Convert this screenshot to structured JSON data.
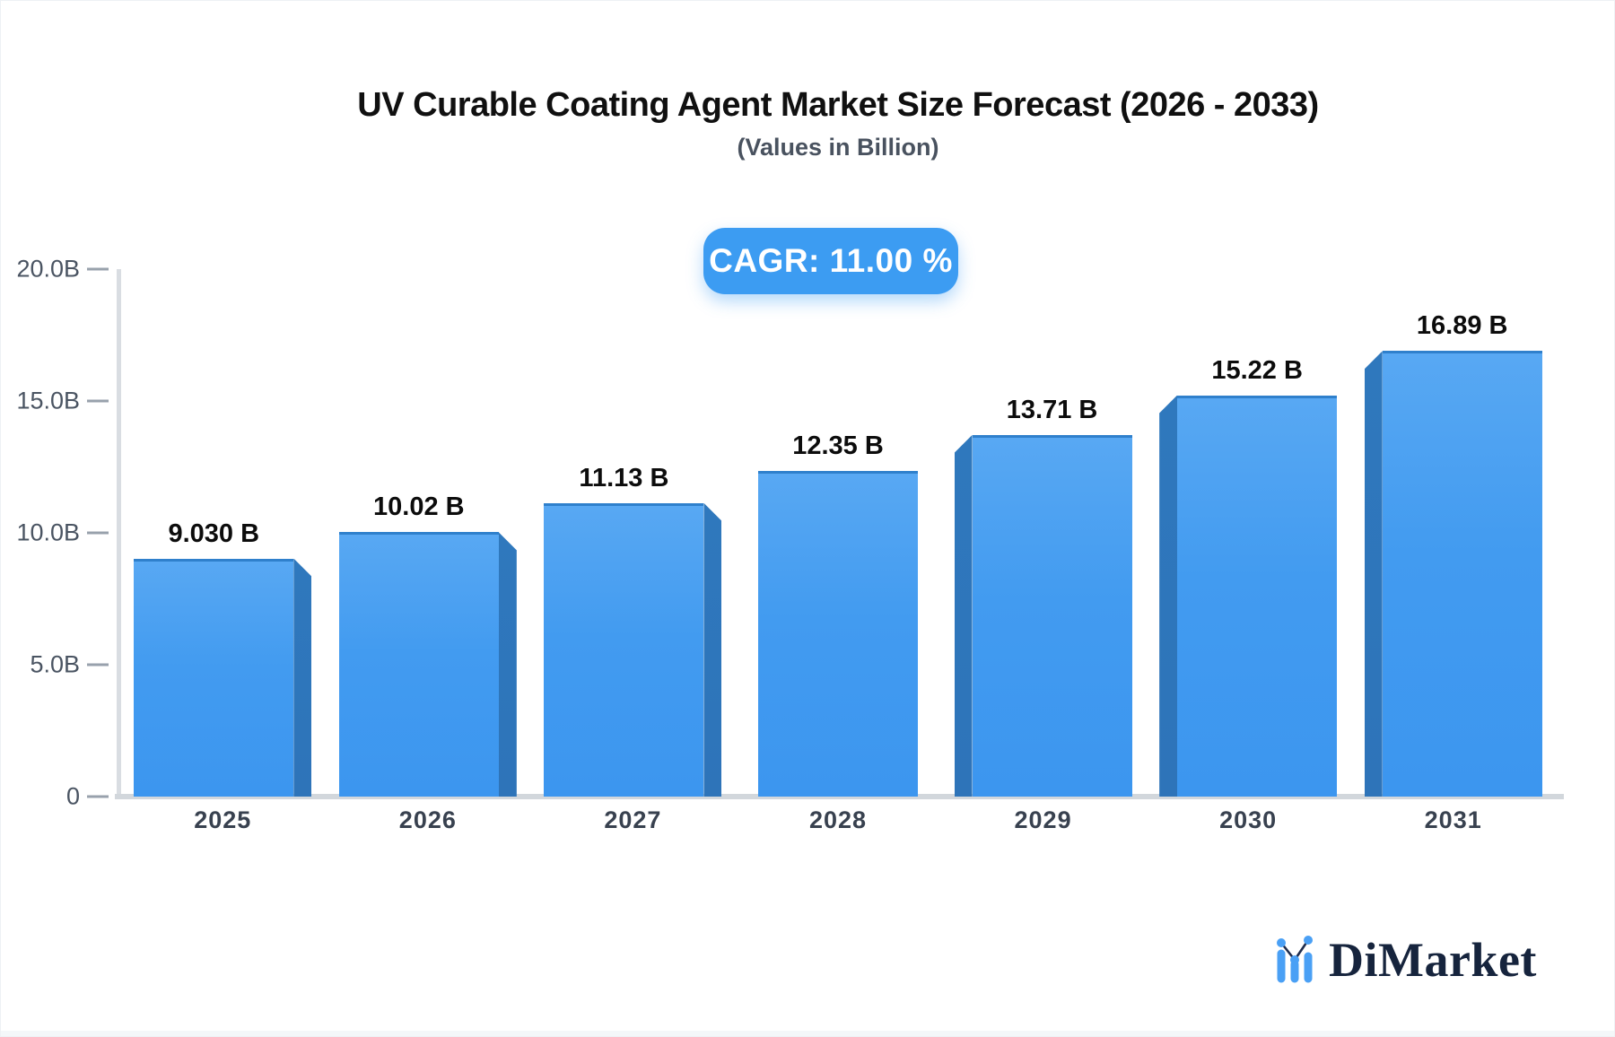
{
  "header": {
    "title": "UV Curable Coating Agent Market Size Forecast (2026 - 2033)",
    "subtitle": "(Values in Billion)"
  },
  "badge": {
    "label": "CAGR: 11.00 %"
  },
  "chart_data": {
    "type": "bar",
    "title": "UV Curable Coating Agent Market Size Forecast (2026 - 2033)",
    "subtitle": "(Values in Billion)",
    "xlabel": "",
    "ylabel": "",
    "ylim": [
      0,
      20
    ],
    "grid": false,
    "categories": [
      "2025",
      "2026",
      "2027",
      "2028",
      "2029",
      "2030",
      "2031"
    ],
    "values": [
      9.03,
      10.02,
      11.13,
      12.35,
      13.71,
      15.22,
      16.89
    ],
    "value_labels": [
      "9.030 B",
      "10.02 B",
      "11.13 B",
      "12.35 B",
      "13.71 B",
      "15.22 B",
      "16.89 B"
    ],
    "y_ticks": [
      {
        "value": 0,
        "label": "0"
      },
      {
        "value": 5,
        "label": "5.0B"
      },
      {
        "value": 10,
        "label": "10.0B"
      },
      {
        "value": 15,
        "label": "15.0B"
      },
      {
        "value": 20,
        "label": "20.0B"
      }
    ],
    "colors": {
      "bar_face": "#3e97ef",
      "bar_face_light": "#58a8f3",
      "bar_side": "#2e74b9",
      "axis": "#d9dde2",
      "tick_text": "#4a5462",
      "value_text": "#0c0c0c"
    }
  },
  "logo": {
    "brand": "DiMarket",
    "icon": "bar-chart-trend-icon",
    "color": "#4aa0f5",
    "text_color": "#16243d"
  }
}
